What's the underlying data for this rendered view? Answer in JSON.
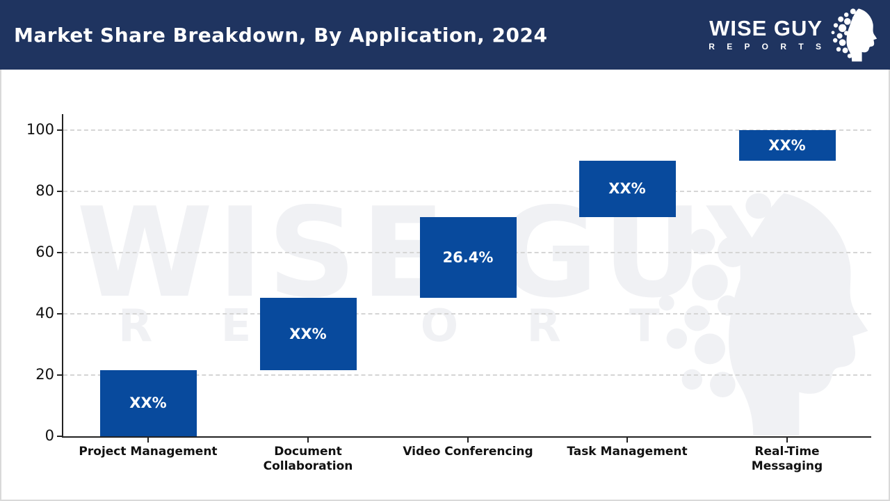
{
  "header": {
    "title": "Market Share Breakdown, By Application, 2024",
    "logo": {
      "name": "WISE GUY",
      "sub": "R E P O R T S"
    }
  },
  "watermark": {
    "line1": "WISE GUY",
    "line2": "R E P O R T S"
  },
  "colors": {
    "header_bg": "#1f3460",
    "bar": "#084a9d",
    "bar_label_text": "#ffffff",
    "axis": "#222222",
    "gridline": "#d5d5d5",
    "watermark": "#f0f1f4"
  },
  "chart_data": {
    "type": "bar",
    "variant": "waterfall-floating-segments",
    "title": "Market Share Breakdown, By Application, 2024",
    "categories": [
      "Project Management",
      "Document Collaboration",
      "Video Conferencing",
      "Task Management",
      "Real-Time Messaging"
    ],
    "segments": [
      {
        "category": "Project Management",
        "category_lines": [
          "Project Management"
        ],
        "start": 0,
        "end": 21.6,
        "value_label": "XX%"
      },
      {
        "category": "Document Collaboration",
        "category_lines": [
          "Document",
          "Collaboration"
        ],
        "start": 21.6,
        "end": 45.3,
        "value_label": "XX%"
      },
      {
        "category": "Video Conferencing",
        "category_lines": [
          "Video Conferencing"
        ],
        "start": 45.3,
        "end": 71.7,
        "value_label": "26.4%"
      },
      {
        "category": "Task Management",
        "category_lines": [
          "Task Management"
        ],
        "start": 71.7,
        "end": 90.0,
        "value_label": "XX%"
      },
      {
        "category": "Real-Time Messaging",
        "category_lines": [
          "Real-Time",
          "Messaging"
        ],
        "start": 90.0,
        "end": 100.0,
        "value_label": "XX%"
      }
    ],
    "xlabel": "",
    "ylabel": "",
    "yticks": [
      0,
      20,
      40,
      60,
      80,
      100
    ],
    "ylim": [
      0,
      105
    ],
    "grid": "horizontal-dashed",
    "legend": "none"
  }
}
